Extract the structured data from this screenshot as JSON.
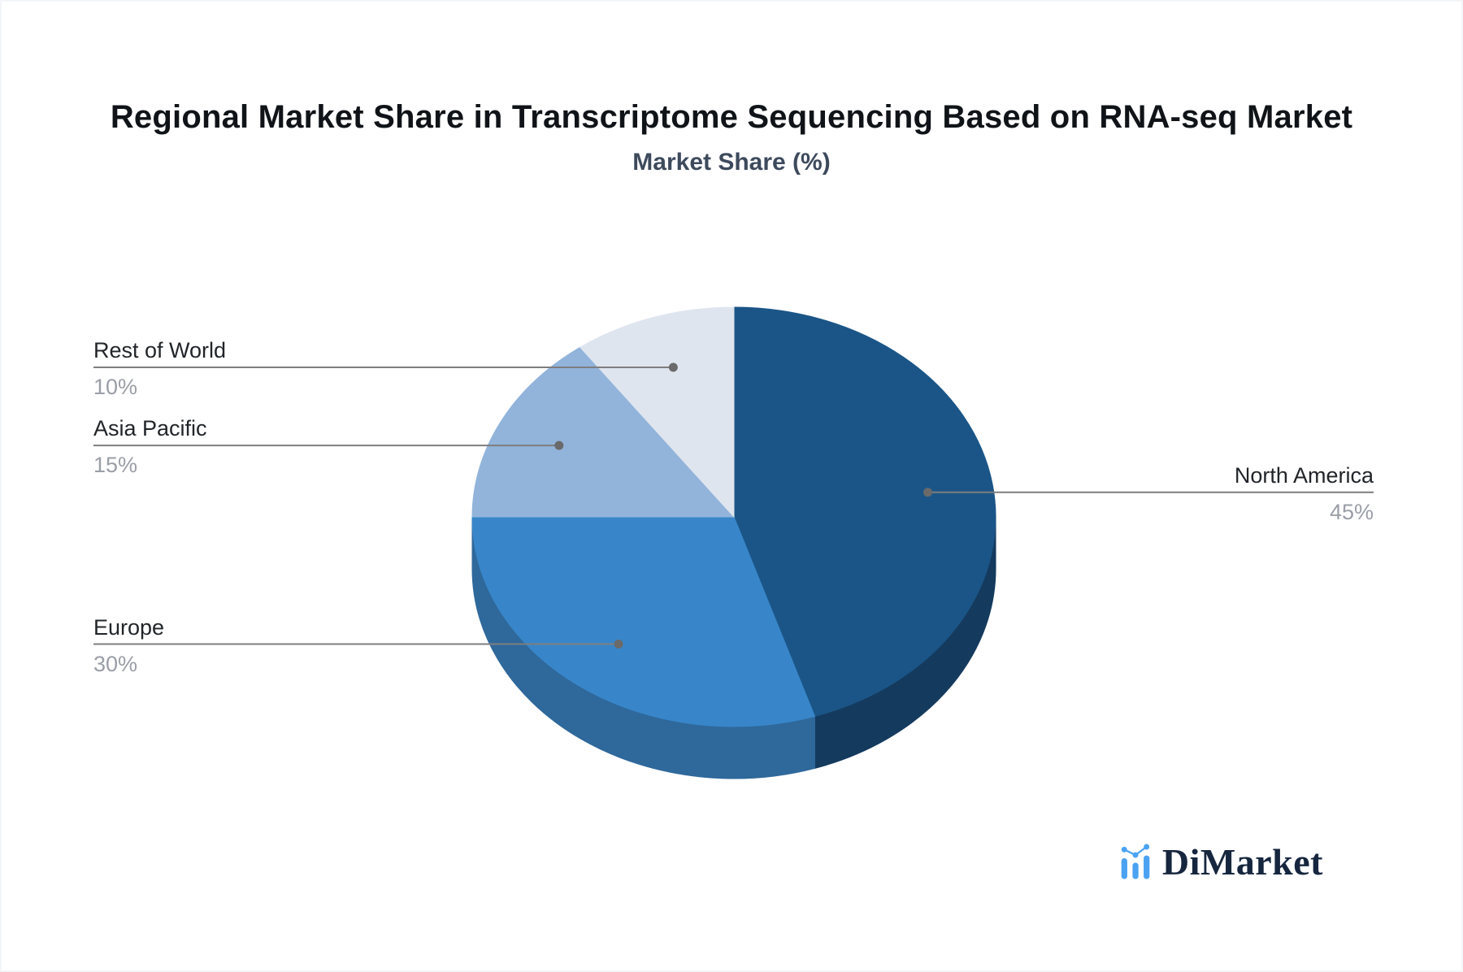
{
  "page": {
    "background": "#FFFFFF",
    "border_color": "#F3F5F8"
  },
  "header": {
    "title": "Regional Market Share in Transcriptome Sequencing Based on RNA-seq Market",
    "subtitle": "Market Share (%)"
  },
  "brand": {
    "name": "DiMarket",
    "icon": "dimarket-bars-logo-icon",
    "icon_color": "#4BA2F2",
    "text_color": "#16263E"
  },
  "chart_data": {
    "type": "pie",
    "title": "Regional Market Share in Transcriptome Sequencing Based on RNA-seq Market",
    "subtitle": "Market Share (%)",
    "unit": "%",
    "style_3d": true,
    "start_angle_deg": 0,
    "direction": "clockwise",
    "legend_position": "callout-labels",
    "categories": [
      "North America",
      "Europe",
      "Asia Pacific",
      "Rest of World"
    ],
    "values": [
      45,
      30,
      15,
      10
    ],
    "slices": [
      {
        "label": "North America",
        "value": 45,
        "display": "45%",
        "color": "#1B5587",
        "side_color": "#143A5E"
      },
      {
        "label": "Europe",
        "value": 30,
        "display": "30%",
        "color": "#3886C9",
        "side_color": "#2F689B"
      },
      {
        "label": "Asia Pacific",
        "value": 15,
        "display": "15%",
        "color": "#92B4DB",
        "side_color": "#6E93BC"
      },
      {
        "label": "Rest of World",
        "value": 10,
        "display": "10%",
        "color": "#DFE5EE",
        "side_color": "#B5BFCD"
      }
    ],
    "leader_line_color": "#7E7E7E",
    "leader_dot_color": "#6A6A6A",
    "label_text_color": "#212529",
    "pct_text_color": "#9A9EA6"
  }
}
